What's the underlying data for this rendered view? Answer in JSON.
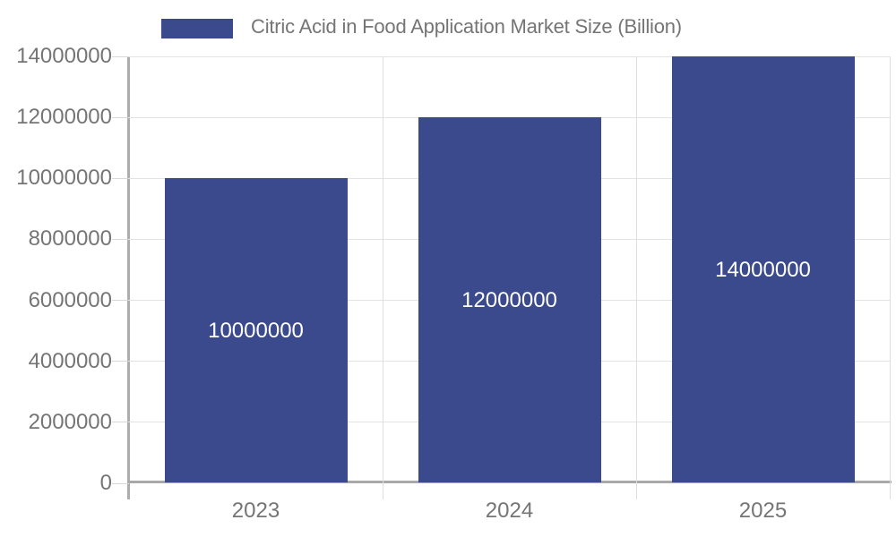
{
  "chart_data": {
    "type": "bar",
    "title": "Citric Acid in Food Application Market Size (Billion)",
    "legend": {
      "label": "Citric Acid in Food Application Market Size (Billion)",
      "position": "top-left"
    },
    "categories": [
      "2023",
      "2024",
      "2025"
    ],
    "series": [
      {
        "name": "Citric Acid in Food Application Market Size (Billion)",
        "values": [
          10000000,
          12000000,
          14000000
        ]
      }
    ],
    "values": [
      10000000,
      12000000,
      14000000
    ],
    "bar_labels": [
      "10000000",
      "12000000",
      "14000000"
    ],
    "ytick_labels": [
      "0",
      "2000000",
      "4000000",
      "6000000",
      "8000000",
      "10000000",
      "12000000",
      "14000000"
    ],
    "ylim": [
      0,
      14000000
    ],
    "ytick_step": 2000000,
    "xlabel": "",
    "ylabel": "",
    "grid": true,
    "colors": {
      "bar": "#3A4A8C",
      "bar_label_text": "#ffffff",
      "axis_text": "#757575"
    }
  }
}
